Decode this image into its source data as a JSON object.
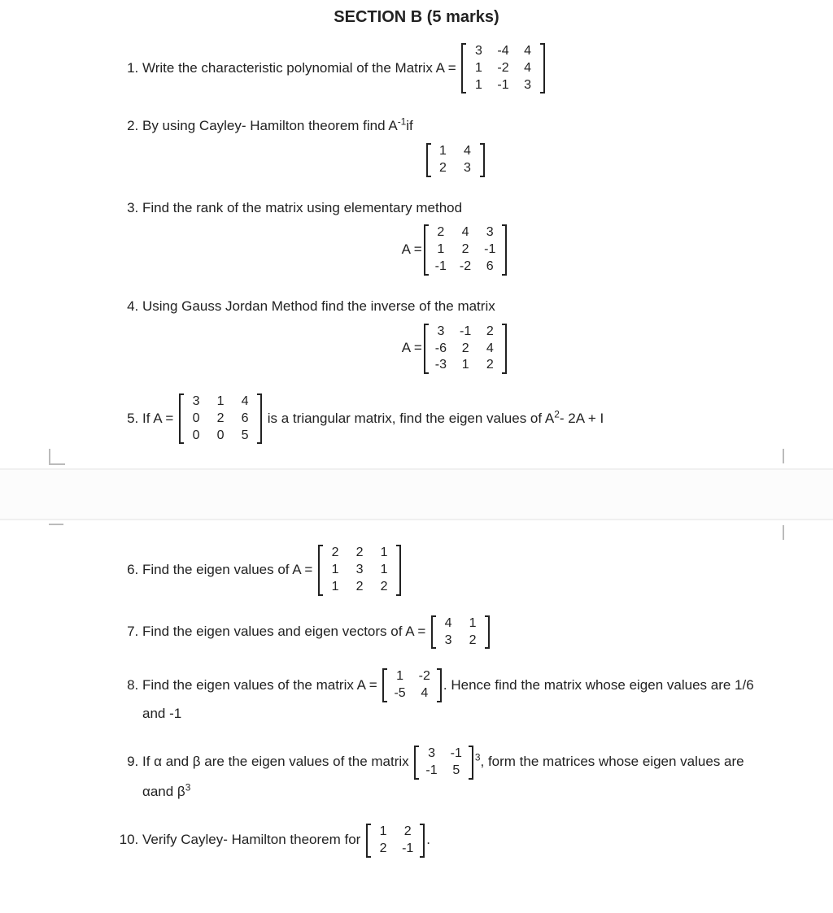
{
  "title": "SECTION B (5 marks)",
  "questions": [
    {
      "pre": "Write the characteristic polynomial of the Matrix A =",
      "matrix": [
        [
          "3",
          "-4",
          "4"
        ],
        [
          "1",
          "-2",
          "4"
        ],
        [
          "1",
          "-1",
          "3"
        ]
      ],
      "layout": "inline"
    },
    {
      "pre": "By using Cayley- Hamilton theorem find A",
      "sup": "-1",
      "post": "if",
      "matrix": [
        [
          "1",
          "4"
        ],
        [
          "2",
          "3"
        ]
      ],
      "layout": "block"
    },
    {
      "pre": "Find the rank of the matrix using elementary method",
      "eq_label": "A =",
      "matrix": [
        [
          "2",
          "4",
          "3"
        ],
        [
          "1",
          "2",
          "-1"
        ],
        [
          "-1",
          "-2",
          "6"
        ]
      ],
      "layout": "block"
    },
    {
      "pre": "Using Gauss Jordan Method find the inverse of the matrix",
      "eq_label": "A =",
      "matrix": [
        [
          "3",
          "-1",
          "2"
        ],
        [
          "-6",
          "2",
          "4"
        ],
        [
          "-3",
          "1",
          "2"
        ]
      ],
      "layout": "block"
    },
    {
      "pre": "If A =",
      "matrix": [
        [
          "3",
          "1",
          "4"
        ],
        [
          "0",
          "2",
          "6"
        ],
        [
          "0",
          "0",
          "5"
        ]
      ],
      "mid": " is a triangular matrix, find the eigen values of  A",
      "sup2": "2",
      "post": "- 2A + I",
      "layout": "inline"
    },
    {
      "pre": "Find the eigen values of   A =",
      "matrix": [
        [
          "2",
          "2",
          "1"
        ],
        [
          "1",
          "3",
          "1"
        ],
        [
          "1",
          "2",
          "2"
        ]
      ],
      "layout": "inline"
    },
    {
      "pre": "Find the eigen values and eigen vectors of A =",
      "matrix": [
        [
          "4",
          "1"
        ],
        [
          "3",
          "2"
        ]
      ],
      "layout": "inline"
    },
    {
      "pre": "Find the eigen values of the matrix A =",
      "matrix": [
        [
          "1",
          "-2"
        ],
        [
          "-5",
          "4"
        ]
      ],
      "post": ". Hence find the matrix whose eigen values are 1/6 and -1",
      "layout": "inline"
    },
    {
      "pre": "If α and β are the eigen values of the matrix",
      "matrix": [
        [
          "3",
          "-1"
        ],
        [
          "-1",
          "5"
        ]
      ],
      "post": ", form the matrices whose eigen values are α",
      "sup2": "3",
      "post2": "and β",
      "sup3": "3",
      "layout": "inline"
    },
    {
      "pre": "Verify Cayley- Hamilton theorem for",
      "matrix": [
        [
          "1",
          "2"
        ],
        [
          "2",
          "-1"
        ]
      ],
      "post": ".",
      "layout": "inline"
    }
  ],
  "font": {
    "family": "Arial",
    "base_size": 17,
    "title_size": 20,
    "color": "#222222"
  },
  "background_color": "#ffffff",
  "page_break_after": 5
}
